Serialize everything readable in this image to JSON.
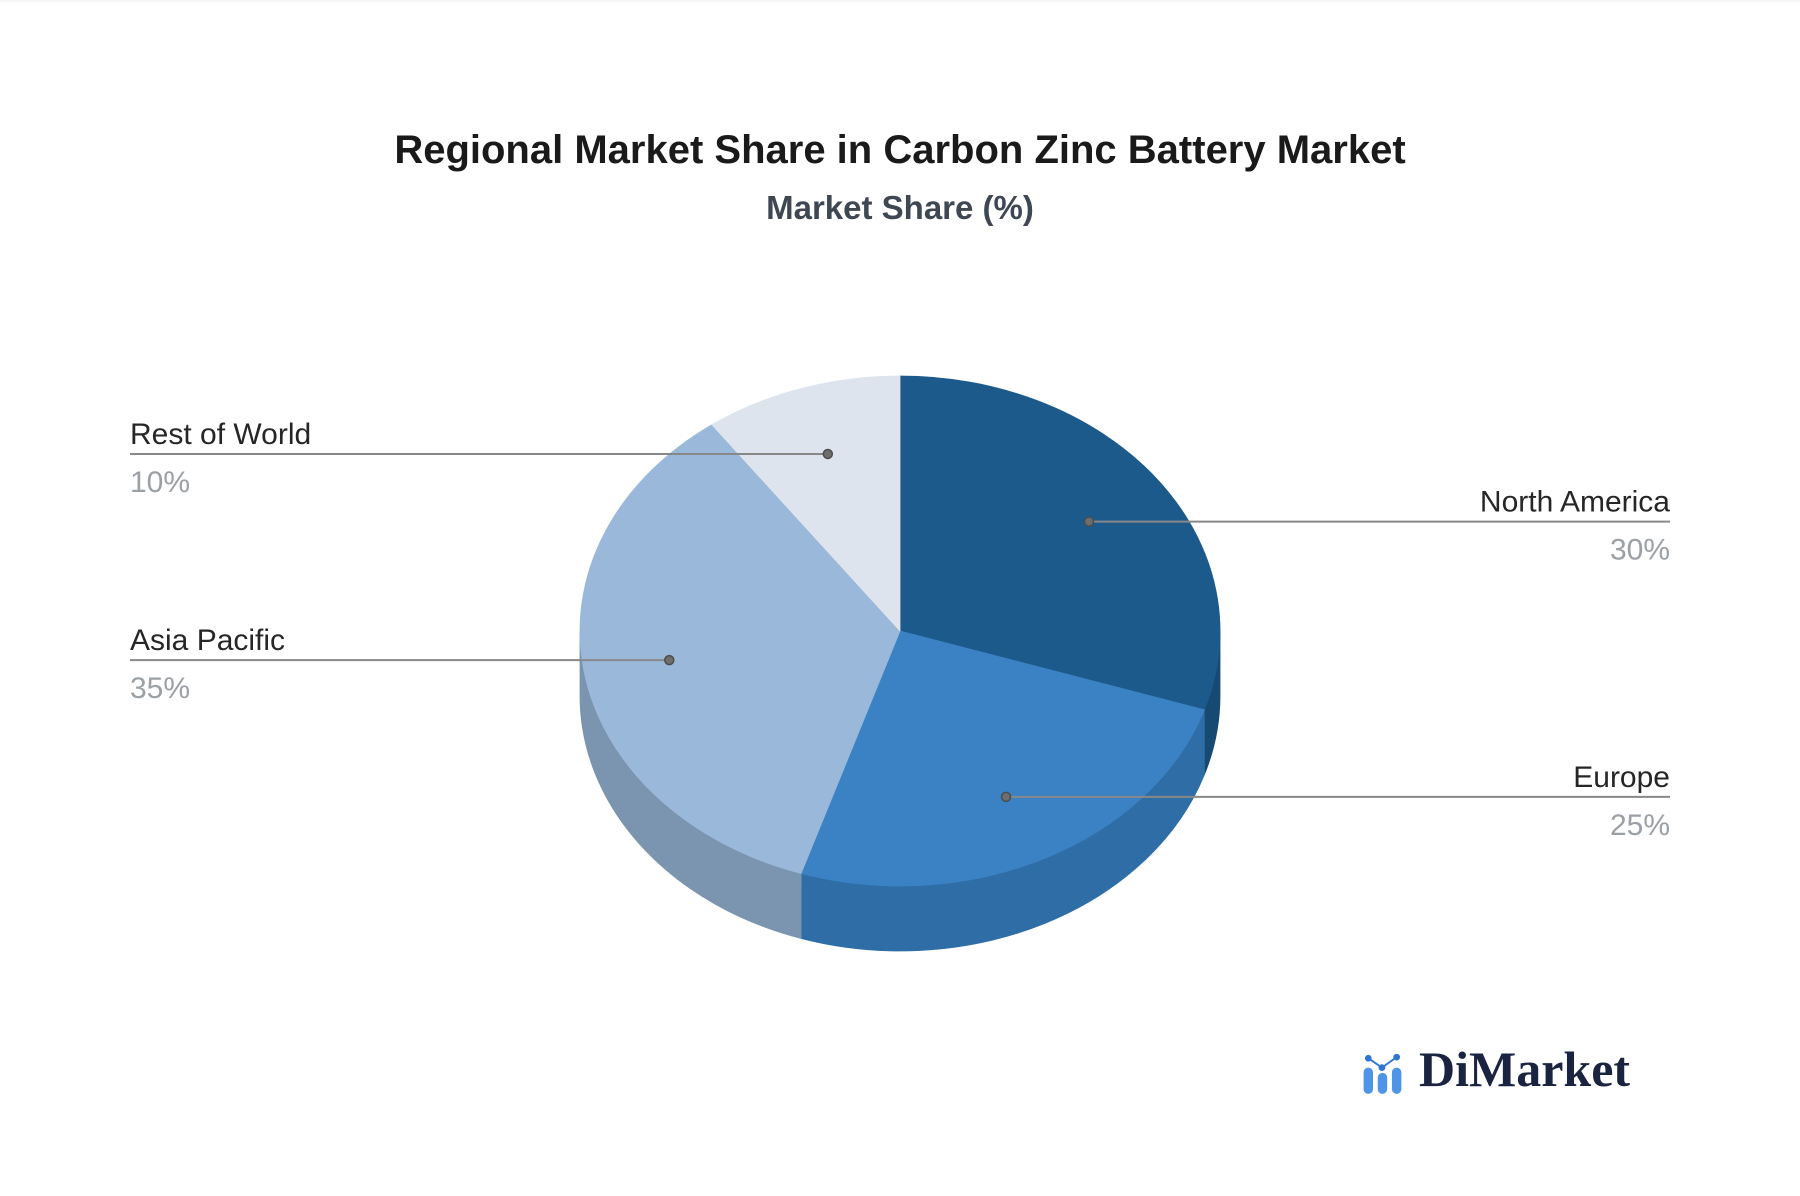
{
  "header": {
    "title": "Regional Market Share in Carbon Zinc Battery Market",
    "subtitle": "Market Share (%)"
  },
  "chart_data": {
    "type": "pie",
    "title": "Regional Market Share in Carbon Zinc Battery Market",
    "subtitle": "Market Share (%)",
    "unit": "%",
    "categories": [
      "North America",
      "Europe",
      "Asia Pacific",
      "Rest of World"
    ],
    "values": [
      30,
      25,
      35,
      10
    ],
    "value_labels": [
      "30%",
      "25%",
      "35%",
      "10%"
    ],
    "start_angle_deg": 90,
    "direction": "clockwise",
    "style": "3d-pie",
    "slice_colors": [
      "#1d5a8c",
      "#3a82c4",
      "#99b8da",
      "#dde4ee"
    ],
    "slice_side_colors": [
      "#164a72",
      "#2e6da6",
      "#7b94af",
      "#c2cddb"
    ],
    "label_text_color": "#262626",
    "value_text_color": "#9aa0a6",
    "leader_line_color": "#888888",
    "leader_dot_color": "#6e6e6e",
    "legend_position": "callout-labels"
  },
  "logo": {
    "text": "DiMarket",
    "text_color": "#1a2440",
    "icon_blue": "#4a90e2",
    "icon_dark_blue": "#2e75d4"
  }
}
